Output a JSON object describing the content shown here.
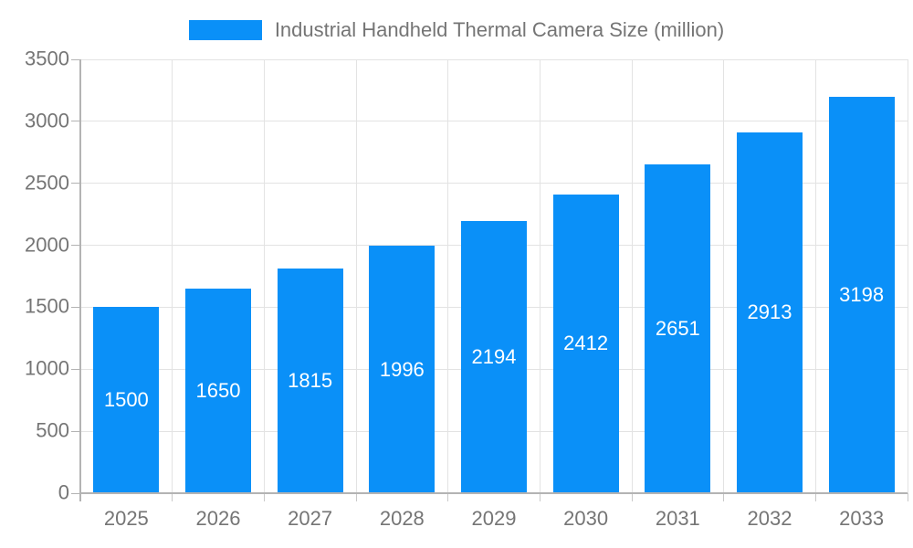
{
  "chart_data": {
    "type": "bar",
    "title": "Industrial Handheld Thermal Camera Size (million)",
    "legend": {
      "entries": [
        "Industrial Handheld Thermal Camera Size (million)"
      ],
      "position": "top-center"
    },
    "categories": [
      "2025",
      "2026",
      "2027",
      "2028",
      "2029",
      "2030",
      "2031",
      "2032",
      "2033"
    ],
    "values": [
      1500,
      1650,
      1815,
      1996,
      2194,
      2412,
      2651,
      2913,
      3198
    ],
    "bar_value_labels": [
      "1500",
      "1650",
      "1815",
      "1996",
      "2194",
      "2412",
      "2651",
      "2913",
      "3198"
    ],
    "xlabel": "",
    "ylabel": "",
    "ylim": [
      0,
      3500
    ],
    "yticks": [
      0,
      500,
      1000,
      1500,
      2000,
      2500,
      3000,
      3500
    ],
    "ytick_labels": [
      "0",
      "500",
      "1000",
      "1500",
      "2000",
      "2500",
      "3000",
      "3500"
    ],
    "grid": true,
    "value_labels_inside_bars": true,
    "colors": {
      "bar": "#0a90f8",
      "grid": "#e3e3e3",
      "axis": "#b3b3b3",
      "tick": "#c9c9c9",
      "text": "#757575",
      "bar_label": "#ffffff",
      "background": "#ffffff"
    }
  }
}
